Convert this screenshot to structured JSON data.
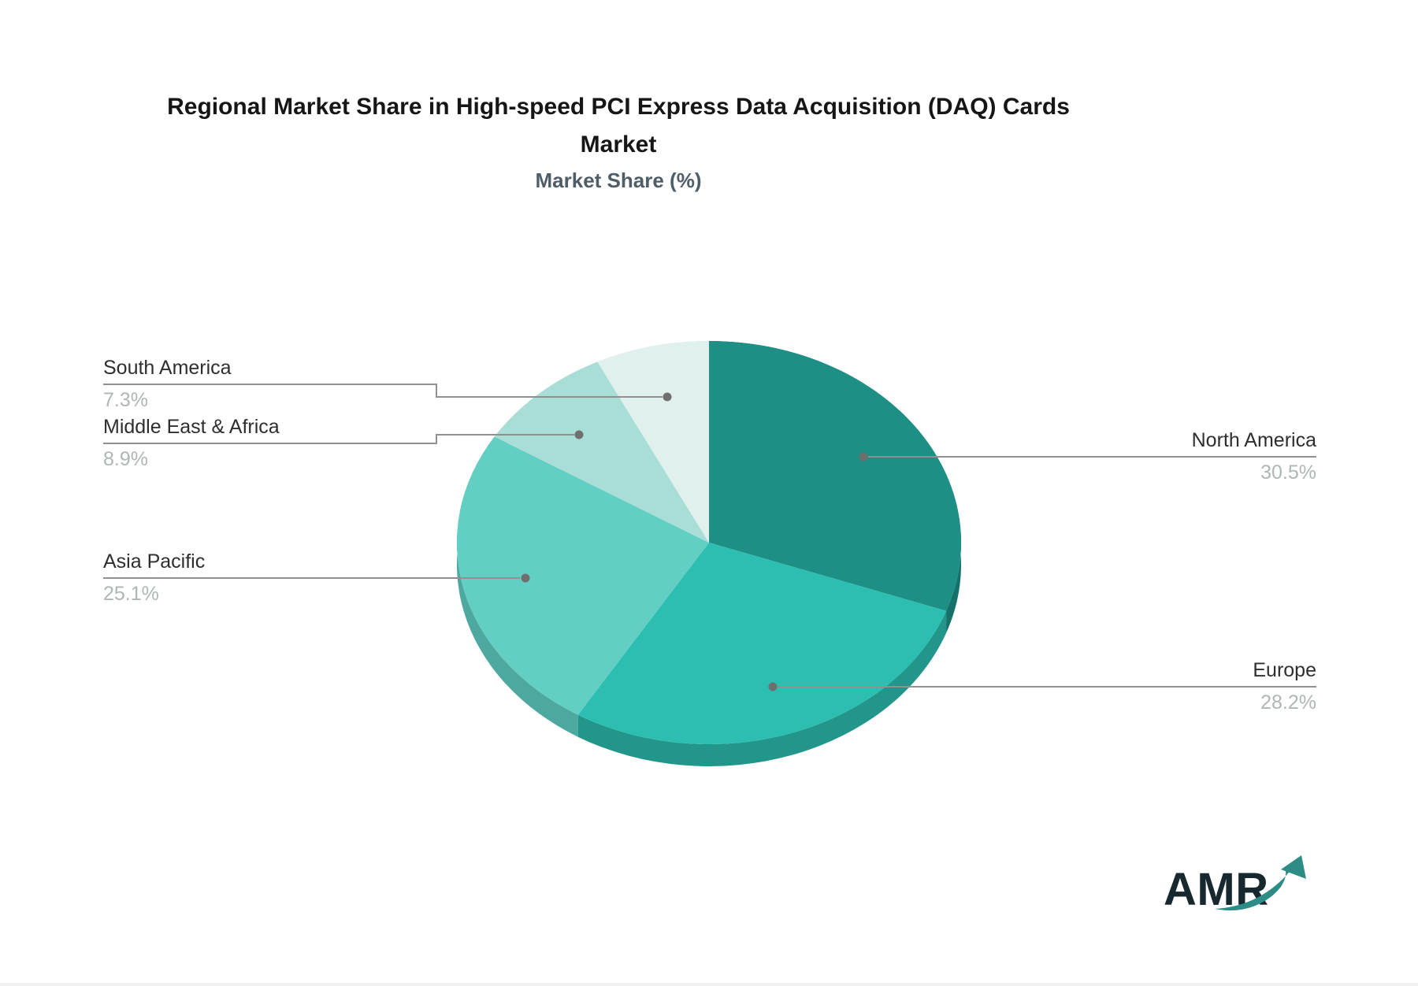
{
  "title_line1": "Regional Market Share in High-speed PCI Express Data Acquisition (DAQ) Cards",
  "title_line2": "Market",
  "subtitle": "Market Share (%)",
  "chart_data": {
    "type": "pie",
    "title": "Regional Market Share in High-speed PCI Express Data Acquisition (DAQ) Cards Market",
    "subtitle": "Market Share (%)",
    "unit": "percent",
    "effect_3d": true,
    "start_angle": "12-o-clock, clockwise",
    "legend_position": "callout-labels",
    "slices": [
      {
        "label": "North America",
        "value": 30.5,
        "display": "30.5%",
        "color": "#1d8f85",
        "side_color": "#15716a"
      },
      {
        "label": "Europe",
        "value": 28.2,
        "display": "28.2%",
        "color": "#2dbeb2",
        "side_color": "#23968c"
      },
      {
        "label": "Asia Pacific",
        "value": 25.1,
        "display": "25.1%",
        "color": "#63cfc4",
        "side_color": "#4da89f"
      },
      {
        "label": "Middle East & Africa",
        "value": 8.9,
        "display": "8.9%",
        "color": "#a9ded6",
        "side_color": "#8cc6be"
      },
      {
        "label": "South America",
        "value": 7.3,
        "display": "7.3%",
        "color": "#dff0ed",
        "side_color": "#c2ddd8"
      }
    ]
  },
  "logo_text": "AMR",
  "colors": {
    "title": "#161616",
    "subtitle": "#4e5d68",
    "label_text": "#2e2e2e",
    "pct_text": "#b0b5b5",
    "leader_line": "#909090",
    "logo_text": "#17282e",
    "logo_arrow": "#2e8c87"
  }
}
